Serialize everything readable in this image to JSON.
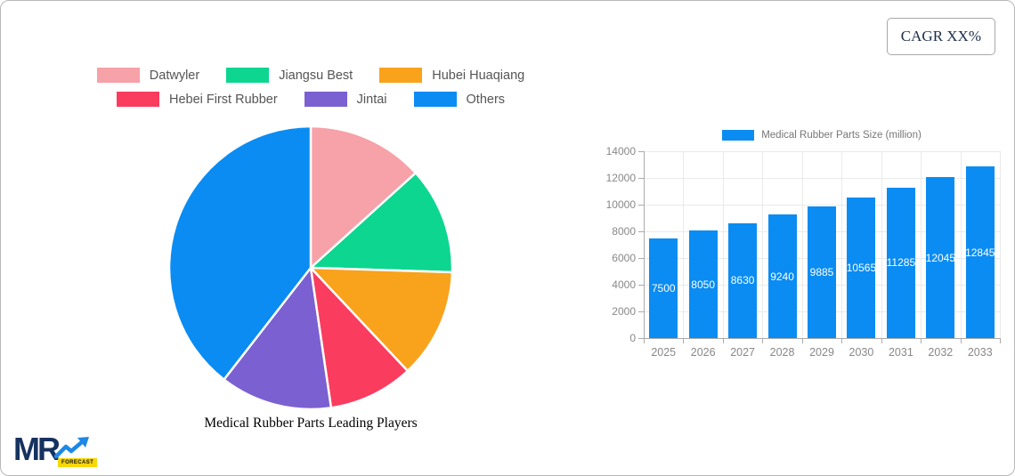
{
  "header": {
    "cagr_label": "CAGR XX%"
  },
  "logo": {
    "mr_text": "MR",
    "forecast_text": "FORECAST"
  },
  "chart_data": [
    {
      "type": "pie",
      "title": "Medical Rubber Parts Leading Players",
      "labels": [
        "Datwyler",
        "Jiangsu Best",
        "Hubei Huaqiang",
        "Hebei First Rubber",
        "Jintai",
        "Others"
      ],
      "values": [
        13.3,
        12.2,
        12.5,
        9.7,
        12.8,
        39.5
      ],
      "colors": [
        "#F7A1A8",
        "#0CD690",
        "#F9A21C",
        "#FA3C5F",
        "#7B60D1",
        "#0A8CF2"
      ],
      "legend_position": "top",
      "legend_columns": 3,
      "start_angle_deg": 0,
      "direction": "clockwise"
    },
    {
      "type": "bar",
      "categories": [
        "2025",
        "2026",
        "2027",
        "2028",
        "2029",
        "2030",
        "2031",
        "2032",
        "2033"
      ],
      "series": [
        {
          "name": "Medical Rubber Parts Size (million)",
          "values": [
            7500,
            8050,
            8630,
            9240,
            9885,
            10565,
            11285,
            12045,
            12845
          ],
          "color": "#0A8CF2"
        }
      ],
      "ylim": [
        0,
        14000
      ],
      "ytick_step": 2000,
      "yticks": [
        0,
        2000,
        4000,
        6000,
        8000,
        10000,
        12000,
        14000
      ],
      "grid": true,
      "legend_position": "top",
      "value_label_style": "white-inside-bar"
    }
  ]
}
